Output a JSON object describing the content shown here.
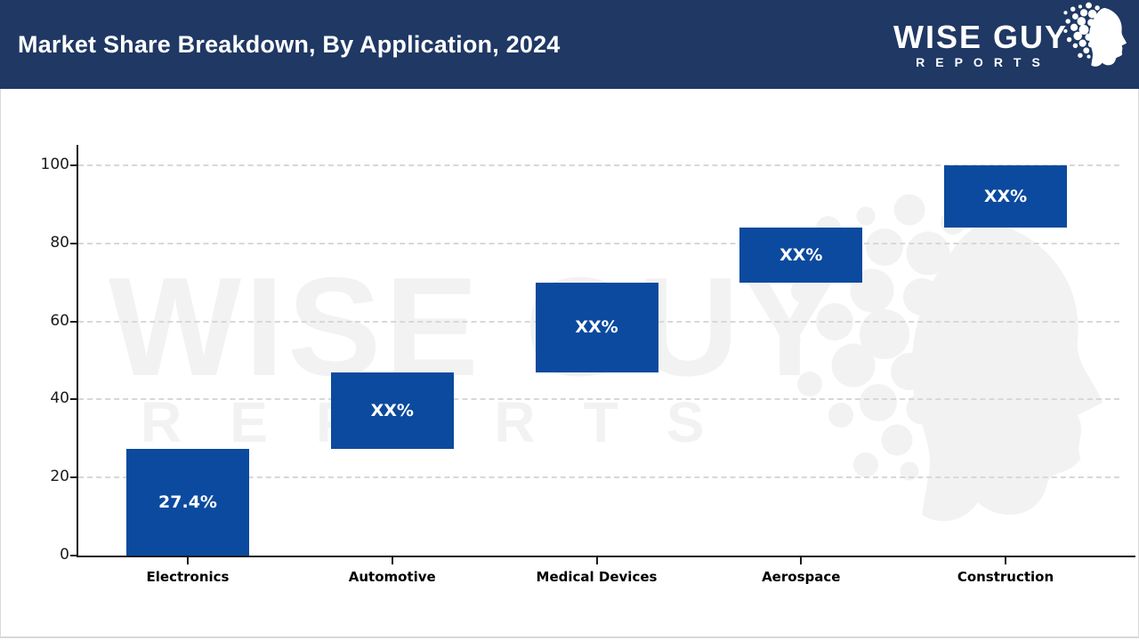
{
  "header": {
    "title": "Market Share Breakdown, By Application, 2024",
    "logo": {
      "line1": "WISE GUY",
      "line2": "REPORTS"
    }
  },
  "watermark": {
    "line1": "WISE GUY",
    "line2": "REPORTS"
  },
  "chart_data": {
    "type": "bar",
    "subtype": "waterfall",
    "title": "Market Share Breakdown, By Application, 2024",
    "categories": [
      "Electronics",
      "Automotive",
      "Medical Devices",
      "Aerospace",
      "Construction"
    ],
    "bars": [
      {
        "category": "Electronics",
        "from": 0,
        "to": 27.4,
        "label": "27.4%"
      },
      {
        "category": "Automotive",
        "from": 27.4,
        "to": 47,
        "label": "XX%"
      },
      {
        "category": "Medical Devices",
        "from": 47,
        "to": 70,
        "label": "XX%"
      },
      {
        "category": "Aerospace",
        "from": 70,
        "to": 84,
        "label": "XX%"
      },
      {
        "category": "Construction",
        "from": 84,
        "to": 100,
        "label": "XX%"
      }
    ],
    "yticks": [
      0,
      20,
      40,
      60,
      80,
      100
    ],
    "ylim": [
      0,
      105
    ],
    "xlabel": "",
    "ylabel": "",
    "grid": "horizontal-dashed",
    "legend": "none",
    "bar_color": "#0b4a9e",
    "bar_label_color": "#ffffff",
    "axis_color": "#1a1a1a",
    "gridline_color": "#d8d8d8"
  }
}
